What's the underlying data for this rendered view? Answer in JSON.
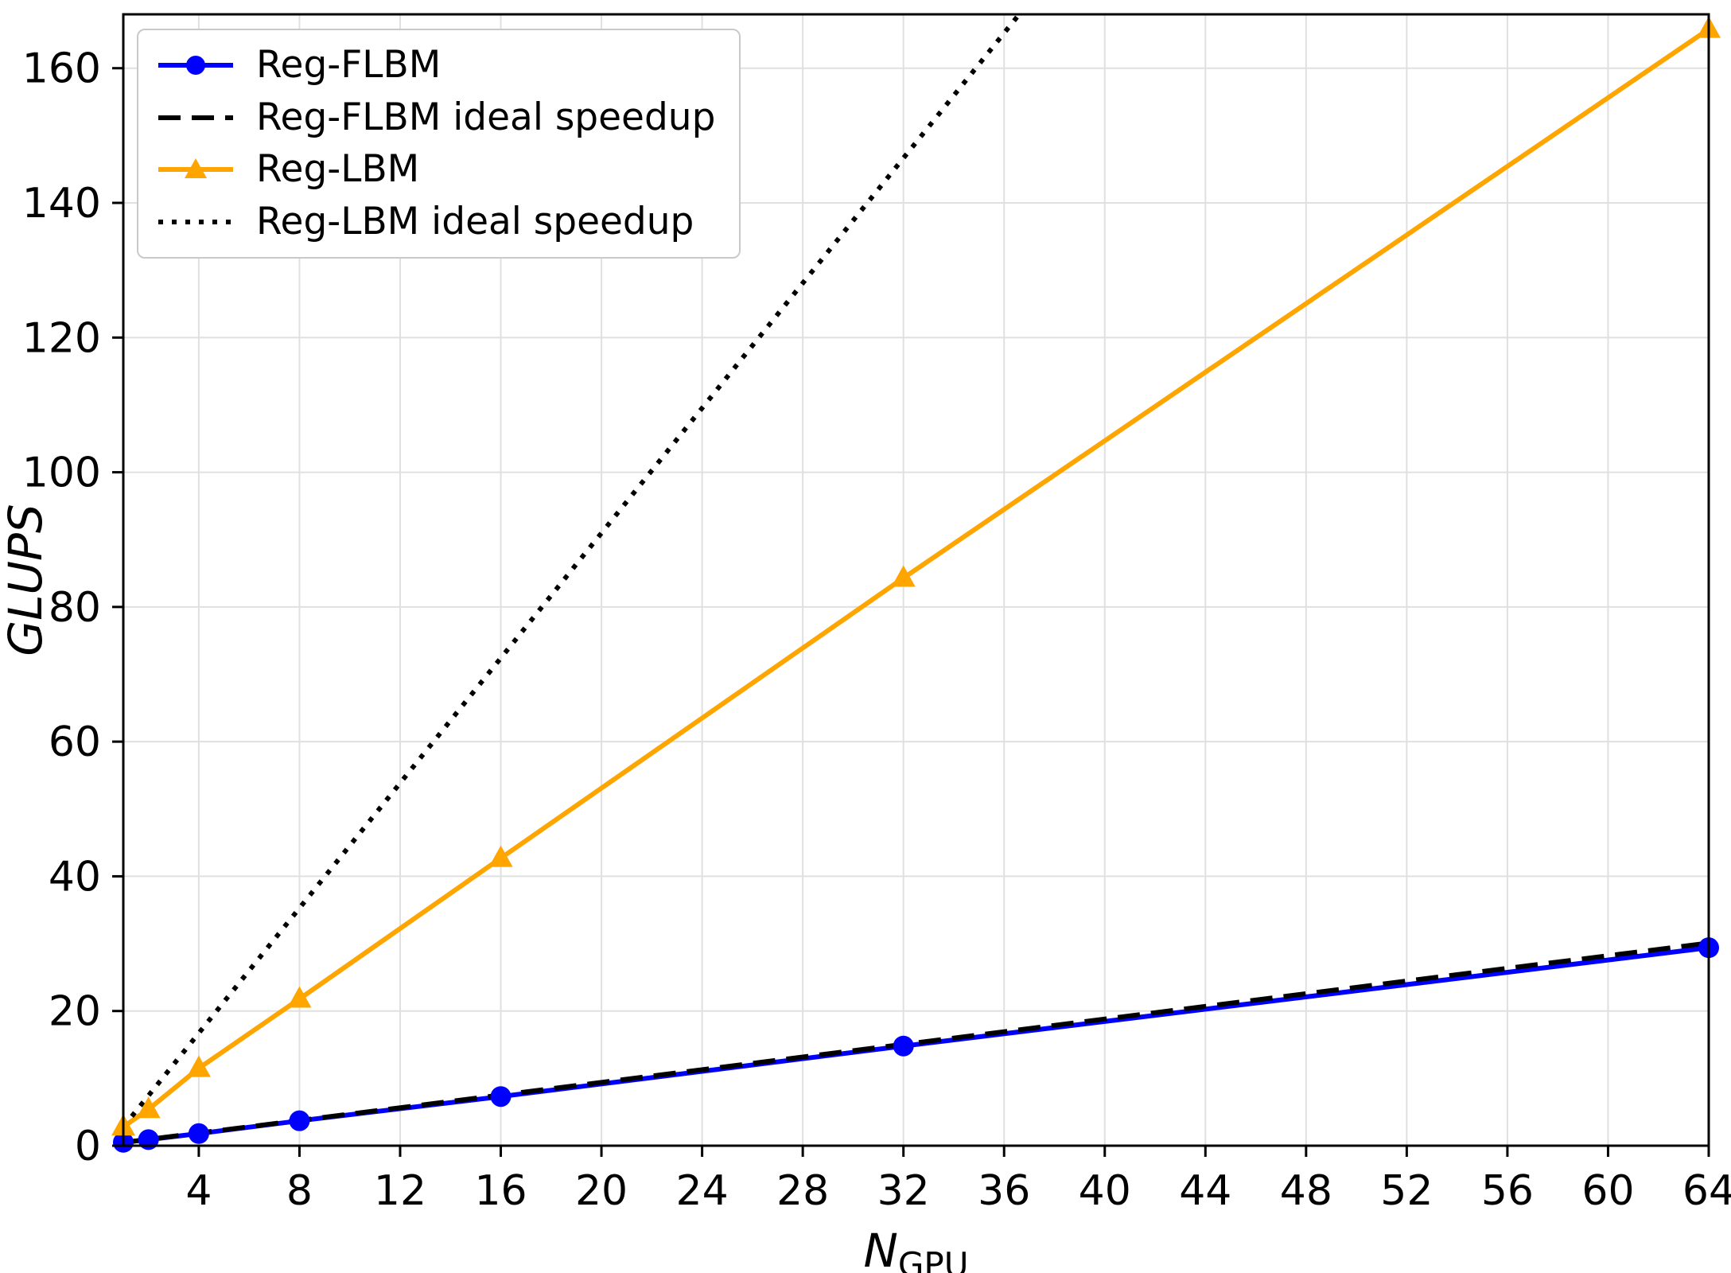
{
  "chart_data": {
    "type": "line",
    "title": "",
    "xlabel_main": "N",
    "xlabel_sub": "GPU",
    "ylabel": "GLUPS",
    "xlim": [
      1,
      64
    ],
    "ylim": [
      0,
      168
    ],
    "xticks": [
      4,
      8,
      12,
      16,
      20,
      24,
      28,
      32,
      36,
      40,
      44,
      48,
      52,
      56,
      60,
      64
    ],
    "yticks": [
      0,
      20,
      40,
      60,
      80,
      100,
      120,
      140,
      160
    ],
    "grid": true,
    "grid_color": "#e0e0e0",
    "axis_color": "#000000",
    "legend_position": "upper-left",
    "series": [
      {
        "name": "Reg-FLBM",
        "style": "solid",
        "marker": "circle",
        "color": "#0000ff",
        "x": [
          1,
          2,
          4,
          8,
          16,
          32,
          64
        ],
        "y": [
          0.5,
          0.9,
          1.8,
          3.7,
          7.3,
          14.8,
          29.4
        ]
      },
      {
        "name": "Reg-FLBM ideal speedup",
        "style": "dashed",
        "marker": "none",
        "color": "#000000",
        "x": [
          1,
          64
        ],
        "y": [
          0.47,
          30.1
        ],
        "clipped_top": false
      },
      {
        "name": "Reg-LBM",
        "style": "solid",
        "marker": "triangle",
        "color": "#ffa500",
        "x": [
          1,
          2,
          4,
          8,
          16,
          32,
          64
        ],
        "y": [
          2.8,
          5.4,
          11.5,
          21.8,
          42.7,
          84.3,
          165.8
        ]
      },
      {
        "name": "Reg-LBM ideal speedup",
        "style": "dotted",
        "marker": "none",
        "color": "#000000",
        "x": [
          1,
          36.6
        ],
        "y": [
          2.8,
          168
        ],
        "clipped_top": true
      }
    ]
  }
}
